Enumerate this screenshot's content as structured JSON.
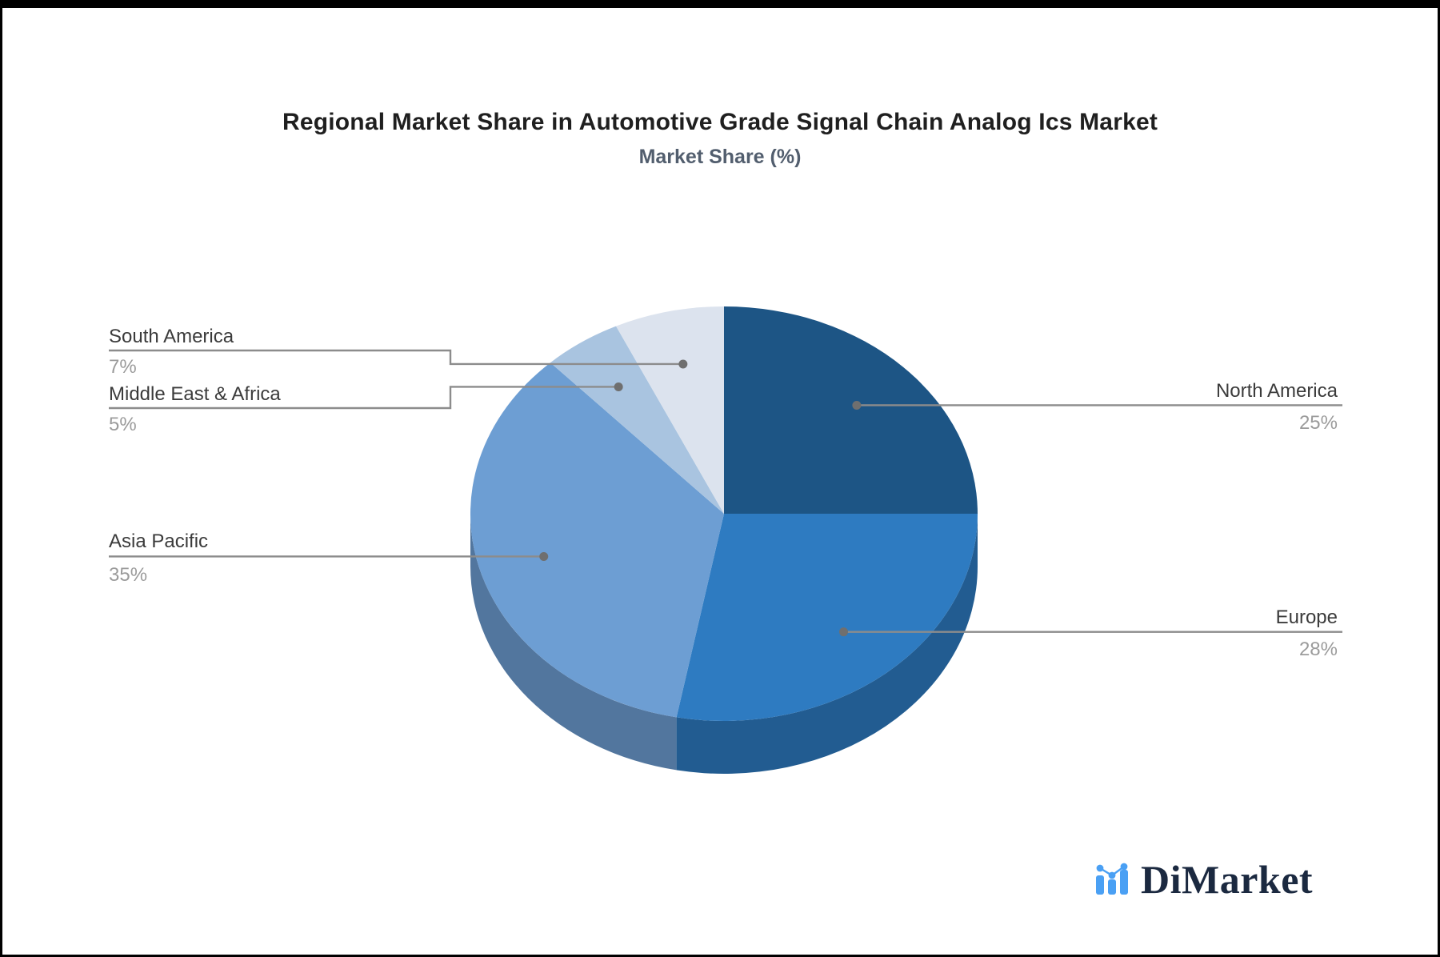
{
  "page": {
    "title": "Regional Market Share in Automotive Grade Signal Chain Analog Ics Market",
    "subtitle": "Market Share (%)"
  },
  "chart_data": {
    "type": "pie",
    "title": "Regional Market Share in Automotive Grade Signal Chain Analog Ics Market",
    "subtitle": "Market Share (%)",
    "unit": "%",
    "effect": "3d",
    "start_angle": "12-o-clock",
    "direction": "clockwise",
    "legend": "none",
    "slices": [
      {
        "label": "North America",
        "value": 25,
        "display": "25%",
        "color": "#1D5585",
        "side_color": "#17436B",
        "label_side": "right"
      },
      {
        "label": "Europe",
        "value": 28,
        "display": "28%",
        "color": "#2E7BC1",
        "side_color": "#225C91",
        "label_side": "right"
      },
      {
        "label": "Asia Pacific",
        "value": 35,
        "display": "35%",
        "color": "#6D9ED3",
        "side_color": "#52769E",
        "label_side": "left"
      },
      {
        "label": "Middle East & Africa",
        "value": 5,
        "display": "5%",
        "color": "#A9C4E0",
        "side_color": "#7F93A8",
        "label_side": "left"
      },
      {
        "label": "South America",
        "value": 7,
        "display": "7%",
        "color": "#DCE3EE",
        "side_color": "#A5AAB2",
        "label_side": "left"
      }
    ]
  },
  "branding": {
    "logo_text": "DiMarket"
  },
  "colors": {
    "background": "#FFFFFF",
    "frame": "#000000",
    "leader_line": "#8C8C8C",
    "leader_dot": "#6F6F6F",
    "label_text": "#3B3B3B",
    "value_text": "#9B9B9B",
    "title_text": "#1F1F1F",
    "subtitle_text": "#525E6E",
    "logo_text_color": "#1B2940",
    "logo_icon_color": "#4AA0F4"
  }
}
